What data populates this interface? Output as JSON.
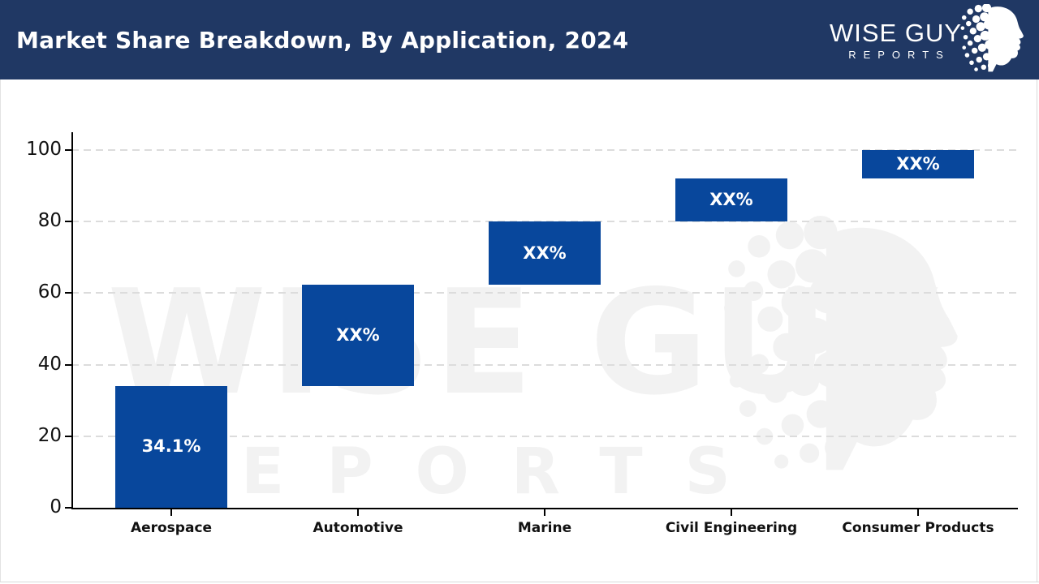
{
  "header": {
    "title": "Market Share Breakdown, By Application, 2024",
    "bg_color": "#203864",
    "logo": {
      "line1": "WISE GUY",
      "line2": "REPORTS"
    }
  },
  "watermark": {
    "line1": "WISE GUY",
    "line2": "REPORTS"
  },
  "chart_data": {
    "type": "bar",
    "subtype": "waterfall",
    "title": "Market Share Breakdown, By Application, 2024",
    "categories": [
      "Aerospace",
      "Automotive",
      "Marine",
      "Civil Engineering",
      "Consumer Products"
    ],
    "series": [
      {
        "category": "Aerospace",
        "start": 0,
        "end": 34.1,
        "label": "34.1%"
      },
      {
        "category": "Automotive",
        "start": 34.1,
        "end": 62.3,
        "label": "XX%"
      },
      {
        "category": "Marine",
        "start": 62.3,
        "end": 80.0,
        "label": "XX%"
      },
      {
        "category": "Civil Engineering",
        "start": 80.0,
        "end": 92.0,
        "label": "XX%"
      },
      {
        "category": "Consumer Products",
        "start": 92.0,
        "end": 100.0,
        "label": "XX%"
      }
    ],
    "xlabel": "",
    "ylabel": "",
    "yticks": [
      0,
      20,
      40,
      60,
      80,
      100
    ],
    "ylim": [
      0,
      105
    ],
    "grid": "horizontal-dashed",
    "legend": "none",
    "bar_color": "#08479c",
    "value_label_color": "#ffffff",
    "axis_color": "#000000",
    "gridline_color": "#dcdcdc"
  }
}
